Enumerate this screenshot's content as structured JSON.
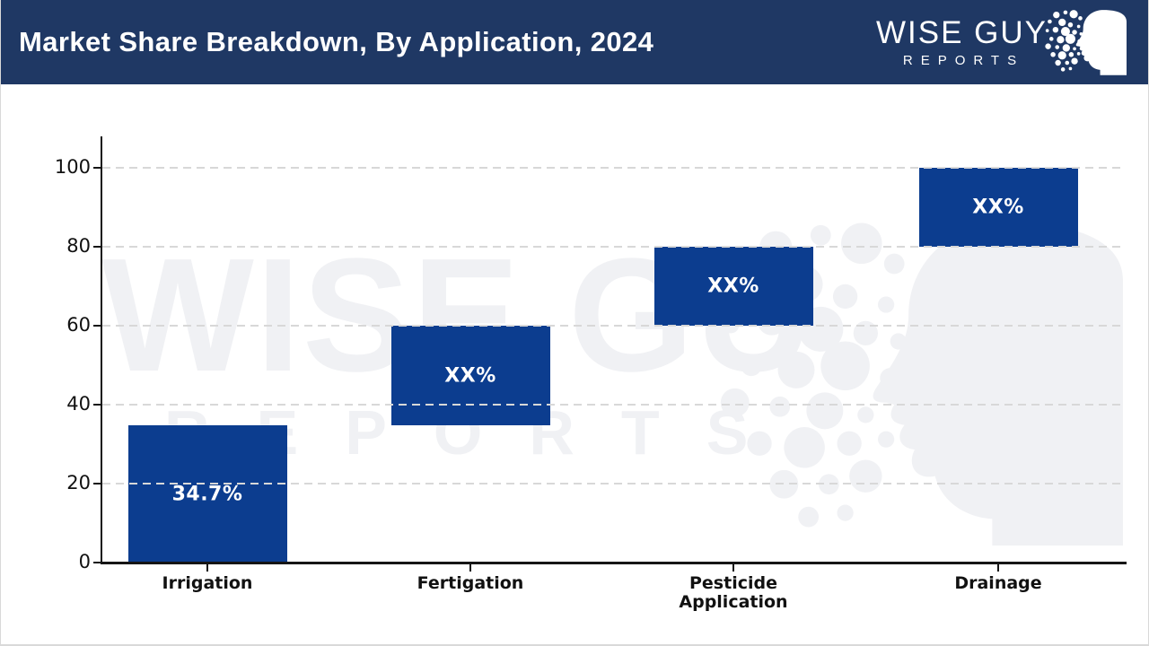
{
  "header": {
    "title": "Market Share Breakdown, By Application, 2024",
    "logo_line1": "WISE GUY",
    "logo_line2": "REPORTS",
    "bg_color": "#1F3864"
  },
  "watermark": {
    "line1": "WISE GU",
    "line2": "REPORTS",
    "color": "#F0F1F4"
  },
  "chart_data": {
    "type": "bar",
    "variant": "waterfall",
    "title": "Market Share Breakdown, By Application, 2024",
    "categories": [
      "Irrigation",
      "Fertigation",
      "Pesticide Application",
      "Drainage"
    ],
    "categories_display": [
      [
        "Irrigation"
      ],
      [
        "Fertigation"
      ],
      [
        "Pesticide",
        "Application"
      ],
      [
        "Drainage"
      ]
    ],
    "series": [
      {
        "name": "Market share (%)",
        "segments": [
          {
            "category": "Irrigation",
            "start": 0,
            "end": 34.7,
            "label": "34.7%"
          },
          {
            "category": "Fertigation",
            "start": 34.7,
            "end": 60,
            "label": "XX%"
          },
          {
            "category": "Pesticide Application",
            "start": 60,
            "end": 80,
            "label": "XX%"
          },
          {
            "category": "Drainage",
            "start": 80,
            "end": 100,
            "label": "XX%"
          }
        ]
      }
    ],
    "xlabel": "",
    "ylabel": "",
    "ylim": [
      0,
      100
    ],
    "yticks": [
      0,
      20,
      40,
      60,
      80,
      100
    ],
    "grid": "horizontal-dashed",
    "grid_above_bars": true,
    "legend": "none",
    "bar_color": "#0C3D8F",
    "bar_label_color": "#FFFFFF",
    "axis_color": "#151515",
    "grid_color": "#D8D8D8"
  }
}
